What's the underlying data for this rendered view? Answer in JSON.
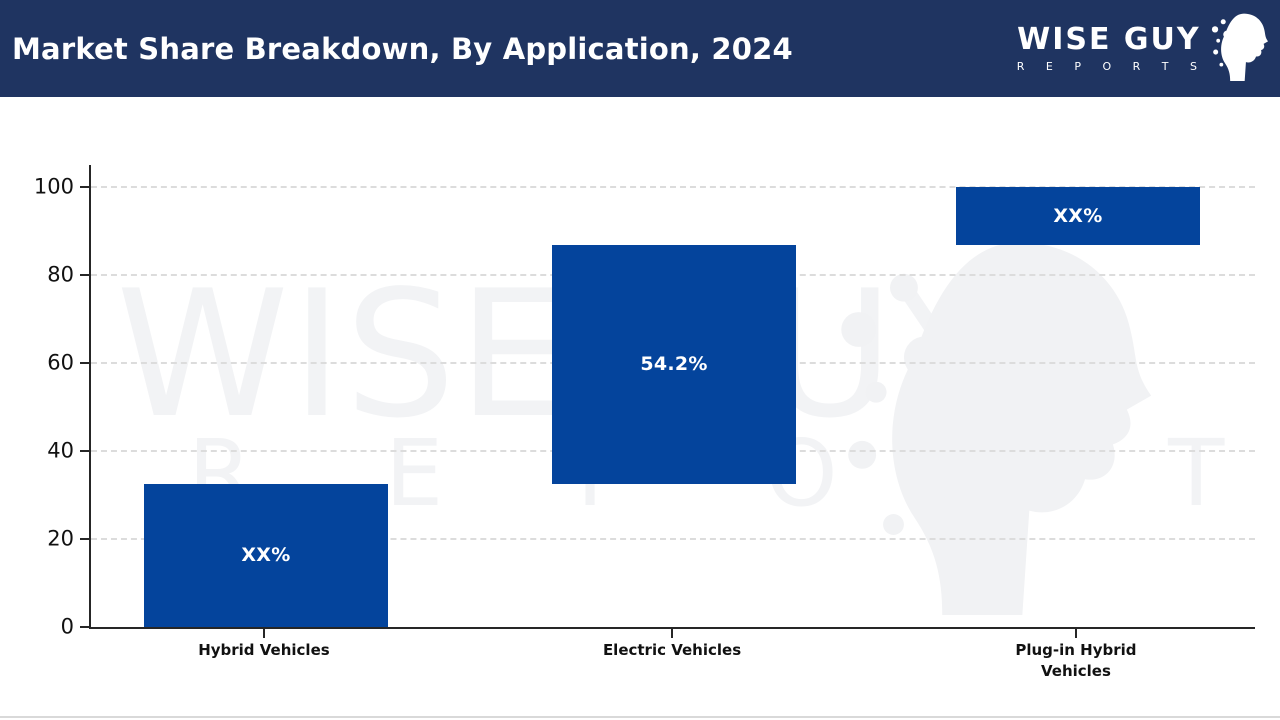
{
  "header": {
    "title": "Market Share Breakdown, By Application, 2024",
    "logo": {
      "line1": "WISE GUY",
      "line2": "R E P O R T S"
    }
  },
  "watermark": {
    "line1": "WISE GUY",
    "line2": "R E P O R T S"
  },
  "chart_data": {
    "type": "bar",
    "subtype": "waterfall",
    "title": "Market Share Breakdown, By Application, 2024",
    "categories": [
      "Hybrid Vehicles",
      "Electric Vehicles",
      "Plug-in Hybrid Vehicles"
    ],
    "segments": [
      {
        "category": "Hybrid Vehicles",
        "label": "XX%",
        "start": 0,
        "end": 32.6
      },
      {
        "category": "Electric Vehicles",
        "label": "54.2%",
        "start": 32.6,
        "end": 86.8
      },
      {
        "category": "Plug-in Hybrid Vehicles",
        "label": "XX%",
        "start": 86.8,
        "end": 99.9
      }
    ],
    "xlabel": "",
    "ylabel": "",
    "yticks": [
      0,
      20,
      40,
      60,
      80,
      100
    ],
    "ylim": [
      0,
      105
    ],
    "grid": "horizontal-dashed",
    "legend": "none",
    "bar_color": "#04449c",
    "bar_label_color": "#ffffff",
    "axis_color": "#262626",
    "grid_color": "#dcdcdc"
  },
  "colors": {
    "header_bg": "#1f3461",
    "header_text": "#ffffff",
    "watermark": "#f2f3f5"
  }
}
